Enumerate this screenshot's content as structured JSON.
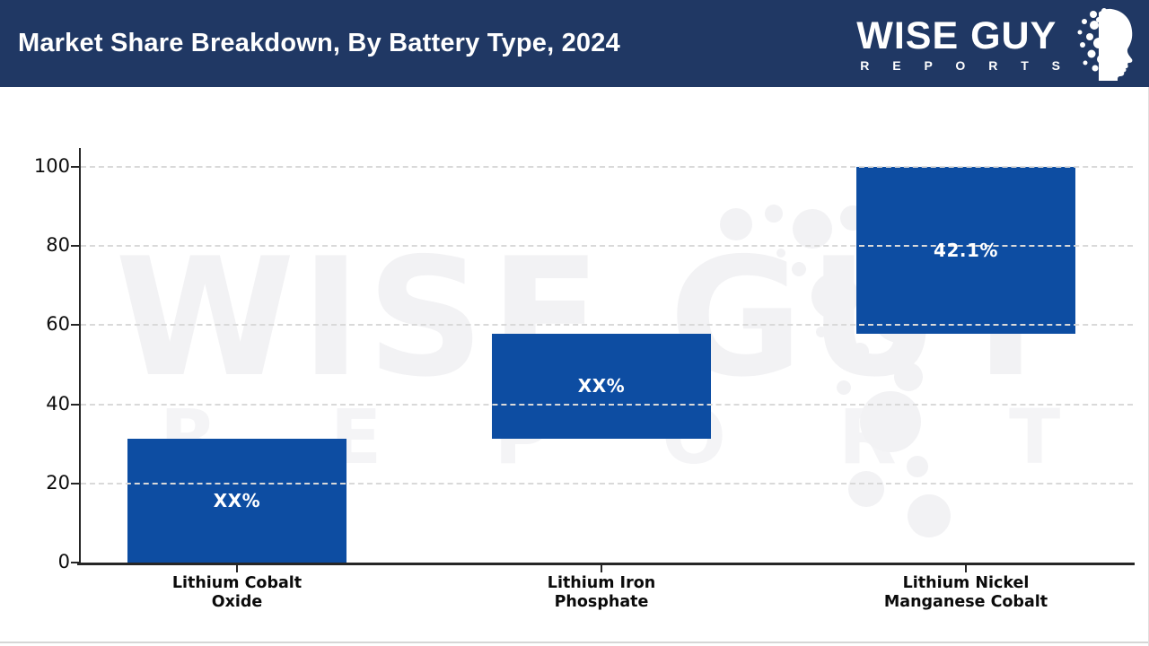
{
  "header": {
    "bg_color": "#203864",
    "title": "Market Share Breakdown, By Battery Type, 2024",
    "logo": {
      "name": "WISE GUY",
      "tagline": "R E P O R T S"
    }
  },
  "chart_data": {
    "type": "bar",
    "subtype": "floating-waterfall",
    "title": "Market Share Breakdown, By Battery Type, 2024",
    "xlabel": "",
    "ylabel": "",
    "categories": [
      {
        "line1": "Lithium Cobalt",
        "line2": "Oxide"
      },
      {
        "line1": "Lithium Iron",
        "line2": "Phosphate"
      },
      {
        "line1": "Lithium Nickel",
        "line2": "Manganese Cobalt"
      }
    ],
    "segments": [
      {
        "category": "Lithium Cobalt Oxide",
        "base": 0,
        "top": 31.4,
        "label": "XX%"
      },
      {
        "category": "Lithium Iron Phosphate",
        "base": 31.4,
        "top": 57.9,
        "label": "XX%"
      },
      {
        "category": "Lithium Nickel Manganese Cobalt",
        "base": 57.9,
        "top": 100,
        "label": "42.1%"
      }
    ],
    "yticks": [
      0,
      20,
      40,
      60,
      80,
      100
    ],
    "ylim": [
      0,
      104.8
    ],
    "grid": {
      "axis": "y",
      "style": "dashed",
      "color": "#d9d9d9",
      "drawn_over_bars": true
    },
    "legend": "none",
    "bar_color": "#0d4da2",
    "bar_label_color": "#ffffff",
    "axis_color": "#262626",
    "watermark": {
      "line1": "WISE GUY",
      "line2": "R E P O R T S"
    }
  }
}
